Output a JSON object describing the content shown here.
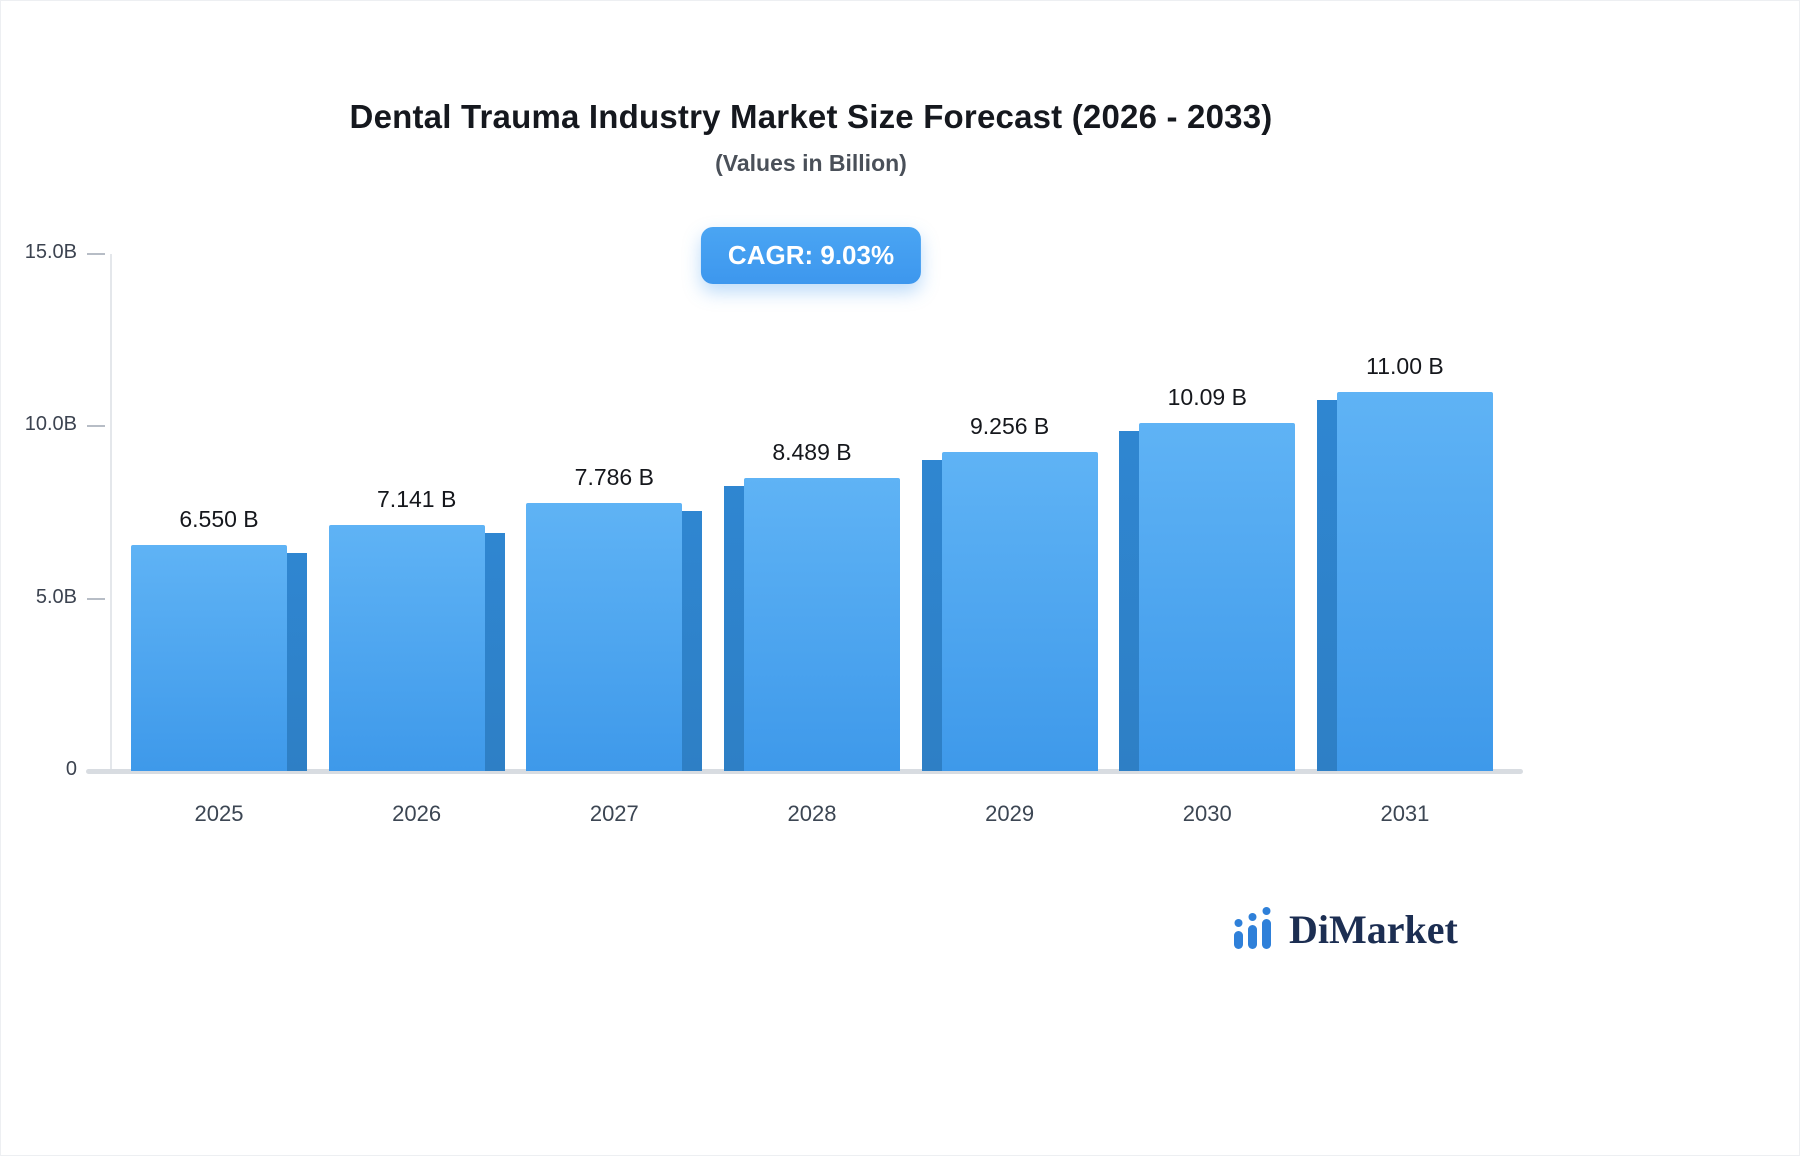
{
  "header": {
    "title": "Dental Trauma Industry Market Size Forecast (2026 - 2033)",
    "subtitle": "(Values in Billion)"
  },
  "badge": {
    "label": "CAGR: 9.03%",
    "bg_color": "#3f9cf0",
    "text_color": "#ffffff"
  },
  "chart_data": {
    "type": "bar",
    "title": "Dental Trauma Industry Market Size Forecast (2026 - 2033)",
    "subtitle": "(Values in Billion)",
    "categories": [
      "2025",
      "2026",
      "2027",
      "2028",
      "2029",
      "2030",
      "2031"
    ],
    "values": [
      6.55,
      7.141,
      7.786,
      8.489,
      9.256,
      10.09,
      11.0
    ],
    "value_labels": [
      "6.550 B",
      "7.141 B",
      "7.786 B",
      "8.489 B",
      "9.256 B",
      "10.09 B",
      "11.00 B"
    ],
    "xlabel": "",
    "ylabel": "",
    "ylim": [
      0,
      15
    ],
    "yticks": [
      {
        "value": 15,
        "label": "15.0B"
      },
      {
        "value": 10,
        "label": "10.0B"
      },
      {
        "value": 5,
        "label": "5.0B"
      },
      {
        "value": 0,
        "label": "0"
      }
    ],
    "grid": false,
    "legend": "none",
    "bar_color_top": "#5fb3f5",
    "bar_color_bottom": "#3e99ea",
    "bar_side_color_top": "#2f86d1",
    "bar_side_color_bottom": "#2e7fc5",
    "bar_3d_sides": [
      "right",
      "right",
      "right",
      "left",
      "left",
      "left",
      "left"
    ]
  },
  "logo": {
    "text": "DiMarket",
    "icon": "bar-chart-icon",
    "text_color": "#1c2e52",
    "icon_color": "#2f80d9"
  }
}
